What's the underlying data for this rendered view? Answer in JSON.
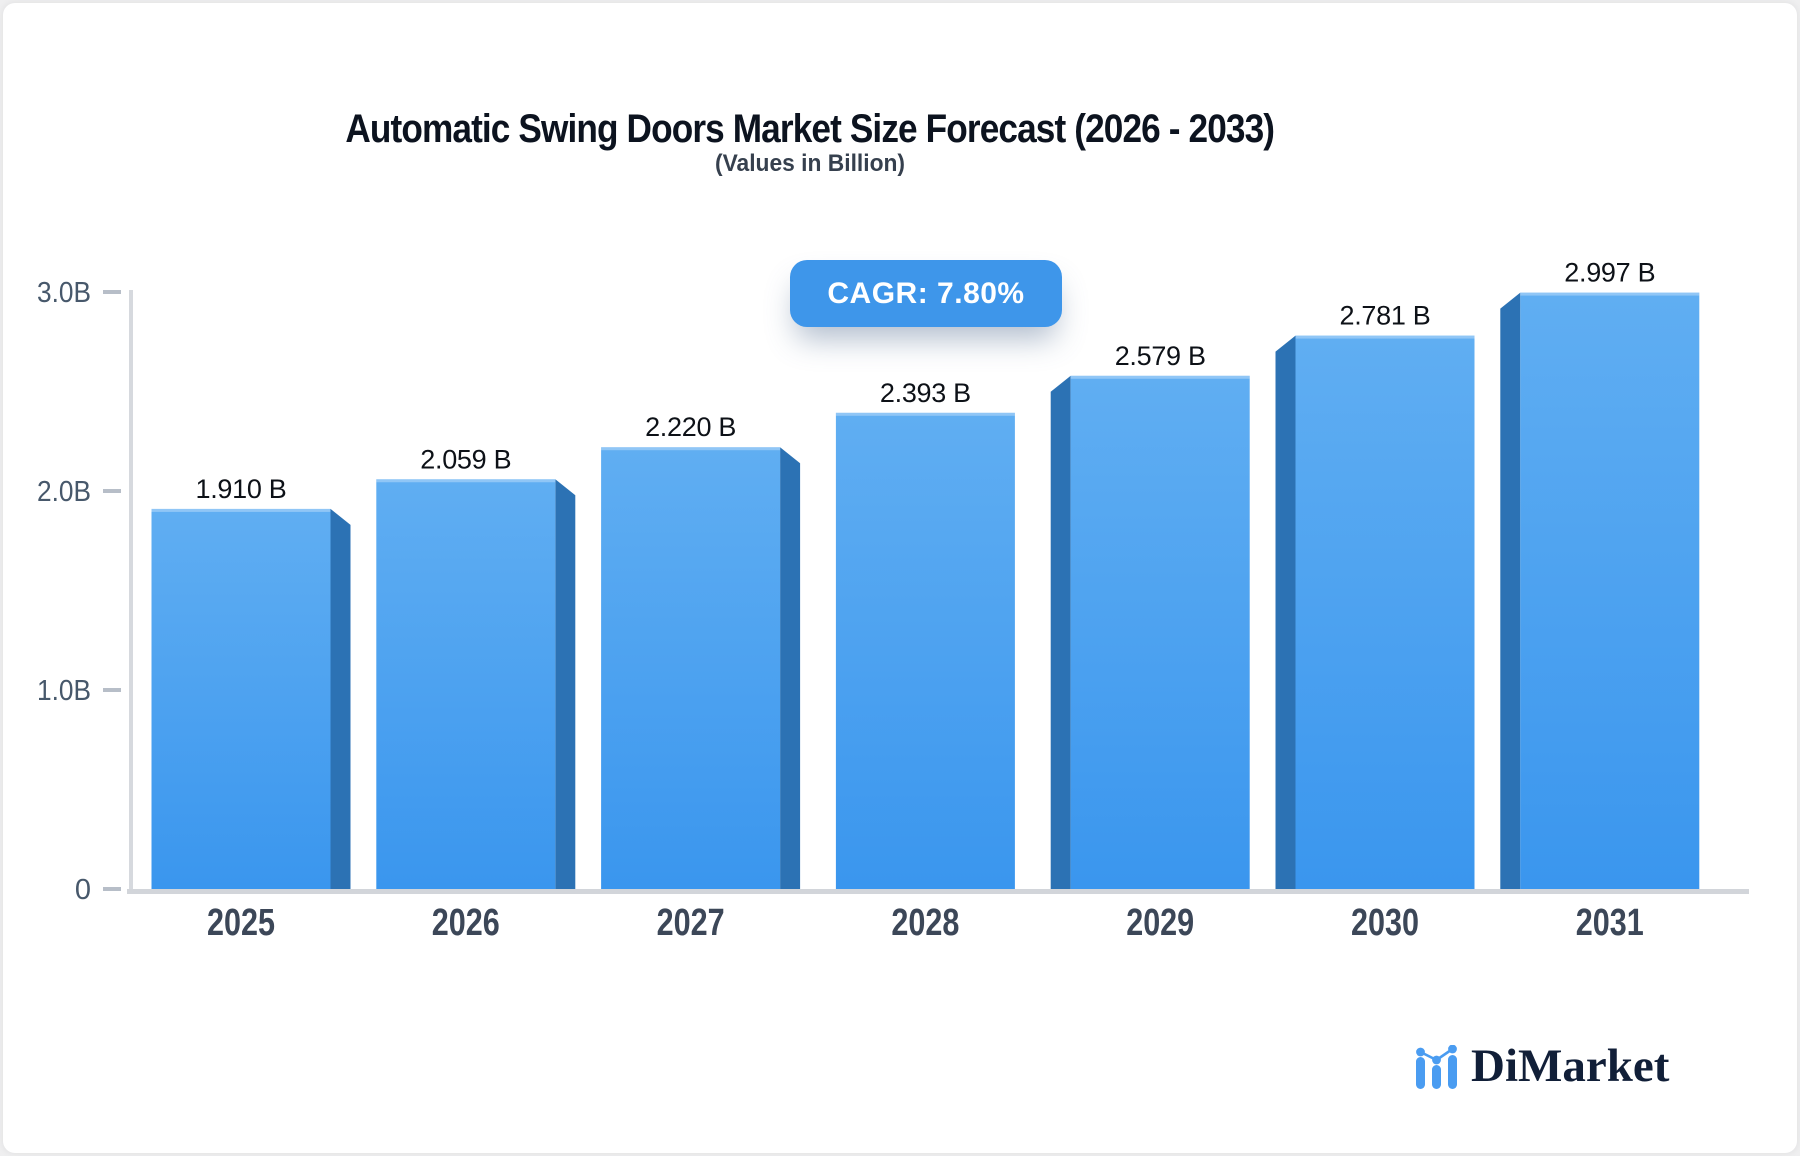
{
  "header": {
    "title": "Automatic Swing Doors Market Size Forecast (2026 - 2033)",
    "subtitle": "(Values in Billion)"
  },
  "badge": {
    "label": "CAGR: 7.80%"
  },
  "chart_data": {
    "type": "bar",
    "title": "Automatic Swing Doors Market Size Forecast (2026 - 2033)",
    "subtitle": "(Values in Billion)",
    "cagr_label": "CAGR: 7.80%",
    "categories": [
      "2025",
      "2026",
      "2027",
      "2028",
      "2029",
      "2030",
      "2031"
    ],
    "values": [
      1.91,
      2.059,
      2.22,
      2.393,
      2.579,
      2.781,
      2.997
    ],
    "value_labels": [
      "1.910 B",
      "2.059 B",
      "2.220 B",
      "2.393 B",
      "2.579 B",
      "2.781 B",
      "2.997 B"
    ],
    "xlabel": "",
    "ylabel": "",
    "ylim": [
      0,
      3.0
    ],
    "y_tick_values": [
      3,
      2,
      1,
      0
    ],
    "y_tick_labels": [
      "3.0B",
      "2.0B",
      "1.0B",
      "0"
    ],
    "grid": false,
    "legend": "none",
    "colors": {
      "bar_top": "#60AEF2",
      "bar_bottom": "#3A96EE",
      "bar_side": "#2C72B4",
      "axis_line": "#D6D9DE",
      "baseline": "#D2D5DA",
      "tick_dash": "#B7BEC8",
      "y_label": "#47586B",
      "x_label": "#3C4758",
      "value_label": "#0D1117",
      "badge_bg": "#3E96EA"
    }
  },
  "logo": {
    "text": "DiMarket",
    "icon": "mini-bar-chart-logo-icon"
  }
}
